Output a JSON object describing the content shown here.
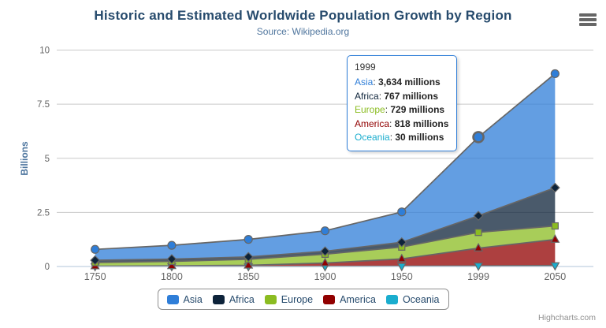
{
  "chart_data": {
    "type": "area",
    "stacking": "normal",
    "title": "Historic and Estimated Worldwide Population Growth by Region",
    "subtitle": "Source: Wikipedia.org",
    "xlabel": "",
    "ylabel": "Billions",
    "categories": [
      "1750",
      "1800",
      "1850",
      "1900",
      "1950",
      "1999",
      "2050"
    ],
    "ylim": [
      0,
      10
    ],
    "yticks": [
      0,
      2.5,
      5,
      7.5,
      10
    ],
    "values_unit": "millions",
    "yaxis_unit": "billions",
    "grid": true,
    "legend_position": "bottom",
    "series": [
      {
        "name": "Asia",
        "color": "#2f7ed8",
        "marker": "circle",
        "values": [
          502,
          635,
          809,
          947,
          1402,
          3634,
          5268
        ]
      },
      {
        "name": "Africa",
        "color": "#0d233a",
        "marker": "diamond",
        "values": [
          106,
          107,
          111,
          133,
          221,
          767,
          1766
        ]
      },
      {
        "name": "Europe",
        "color": "#8bbc21",
        "marker": "square",
        "values": [
          163,
          203,
          276,
          408,
          547,
          729,
          628
        ]
      },
      {
        "name": "America",
        "color": "#910000",
        "marker": "triangle",
        "values": [
          18,
          31,
          54,
          156,
          339,
          818,
          1201
        ]
      },
      {
        "name": "Oceania",
        "color": "#1aadce",
        "marker": "triangle-down",
        "values": [
          2,
          2,
          2,
          6,
          13,
          30,
          46
        ]
      }
    ]
  },
  "tooltip": {
    "header": "1999",
    "rows": [
      {
        "name": "Asia",
        "value": "3,634 millions",
        "color": "#2f7ed8"
      },
      {
        "name": "Africa",
        "value": "767 millions",
        "color": "#0d233a"
      },
      {
        "name": "Europe",
        "value": "729 millions",
        "color": "#8bbc21"
      },
      {
        "name": "America",
        "value": "818 millions",
        "color": "#910000"
      },
      {
        "name": "Oceania",
        "value": "30 millions",
        "color": "#1aadce"
      }
    ]
  },
  "hover_point": {
    "series": "Asia",
    "category": "1999"
  },
  "credits": {
    "label": "Highcharts.com"
  },
  "export_menu": {
    "icon": "hamburger-icon"
  },
  "colors": {
    "title": "#274b6d",
    "subtitle": "#50769e",
    "axis_labels": "#666666",
    "yaxis_title": "#4d759e",
    "legend_text": "#274b6d",
    "legend_border": "#909090",
    "grid_line": "#c9c9c9",
    "axis_line": "#c0d0e0",
    "series_line": "#666666",
    "marker_stroke": "#666666",
    "credits": "#909090",
    "area_fill_opacity": "0.75"
  }
}
